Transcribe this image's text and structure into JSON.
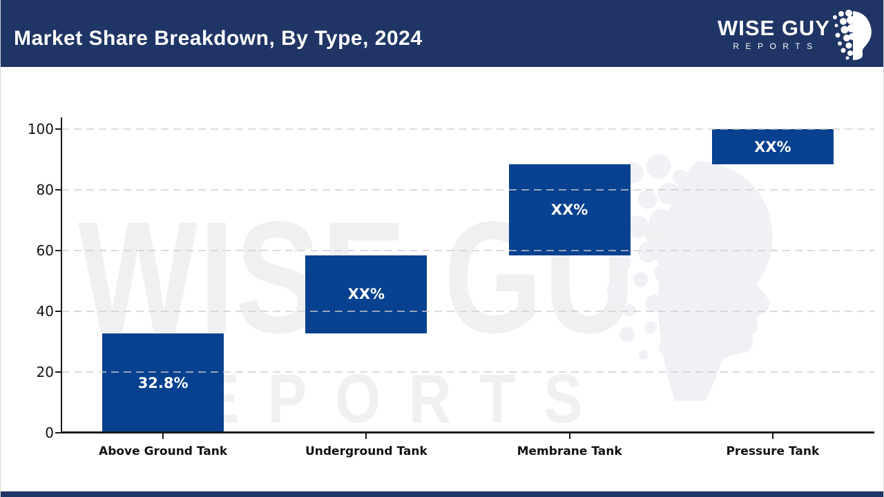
{
  "header": {
    "title": "Market Share Breakdown, By Type, 2024",
    "bg_color": "#1f3565",
    "logo": {
      "line1": "WISE GUY",
      "line2": "REPORTS"
    }
  },
  "watermark": {
    "line1": "WISE GUY",
    "line2": "REPORTS"
  },
  "chart_data": {
    "type": "bar",
    "subtype": "floating-waterfall",
    "title": "Market Share Breakdown, By Type, 2024",
    "categories": [
      "Above Ground Tank",
      "Underground Tank",
      "Membrane Tank",
      "Pressure Tank"
    ],
    "segments": [
      {
        "category": "Above Ground Tank",
        "start": 0,
        "end": 32.8,
        "label": "32.8%"
      },
      {
        "category": "Underground Tank",
        "start": 32.8,
        "end": 58.4,
        "label": "XX%"
      },
      {
        "category": "Membrane Tank",
        "start": 58.4,
        "end": 88.4,
        "label": "XX%"
      },
      {
        "category": "Pressure Tank",
        "start": 88.4,
        "end": 100,
        "label": "XX%"
      }
    ],
    "xlabel": "",
    "ylabel": "",
    "ylim": [
      0,
      100
    ],
    "yticks": [
      0,
      20,
      40,
      60,
      80,
      100
    ],
    "grid": "horizontal-dashed",
    "legend": "none",
    "bar_color": "#07418f",
    "bar_label_color": "#ffffff",
    "axis_color": "#1a1a1a",
    "grid_color": "#d9d9d9"
  }
}
